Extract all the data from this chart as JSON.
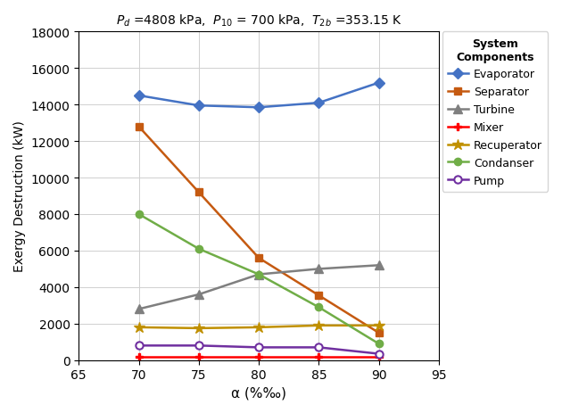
{
  "title": "$P_d$ =4808 kPa,  $P_{10}$ = 700 kPa,  $T_{2b}$ =353.15 K",
  "xlabel": "α (%‰)",
  "ylabel": "Exergy Destruction (kW)",
  "legend_title": "System\nComponents",
  "xlim": [
    65,
    95
  ],
  "ylim": [
    0,
    18000
  ],
  "xticks": [
    65,
    70,
    75,
    80,
    85,
    90,
    95
  ],
  "yticks": [
    0,
    2000,
    4000,
    6000,
    8000,
    10000,
    12000,
    14000,
    16000,
    18000
  ],
  "alpha_values": [
    70,
    75,
    80,
    85,
    90
  ],
  "series": [
    {
      "name": "Evaporator",
      "color": "#4472C4",
      "marker": "D",
      "markersize": 6,
      "linewidth": 1.8,
      "open": false,
      "values": [
        14500,
        13950,
        13850,
        14100,
        15200
      ]
    },
    {
      "name": "Separator",
      "color": "#C55A11",
      "marker": "s",
      "markersize": 6,
      "linewidth": 1.8,
      "open": false,
      "values": [
        12800,
        9200,
        5600,
        3550,
        1500
      ]
    },
    {
      "name": "Turbine",
      "color": "#7F7F7F",
      "marker": "^",
      "markersize": 7,
      "linewidth": 1.8,
      "open": false,
      "values": [
        2800,
        3600,
        4700,
        5000,
        5200
      ]
    },
    {
      "name": "Mixer",
      "color": "#FF0000",
      "marker": "P",
      "markersize": 6,
      "linewidth": 1.8,
      "open": false,
      "values": [
        180,
        180,
        180,
        180,
        180
      ]
    },
    {
      "name": "Recuperator",
      "color": "#C09000",
      "marker": "*",
      "markersize": 9,
      "linewidth": 1.8,
      "open": false,
      "values": [
        1800,
        1750,
        1800,
        1900,
        1900
      ]
    },
    {
      "name": "Condanser",
      "color": "#70AD47",
      "marker": "o",
      "markersize": 6,
      "linewidth": 1.8,
      "open": false,
      "values": [
        8000,
        6100,
        4700,
        2900,
        900
      ]
    },
    {
      "name": "Pump",
      "color": "#7030A0",
      "marker": "o",
      "markersize": 6,
      "linewidth": 1.8,
      "open": true,
      "values": [
        800,
        800,
        700,
        700,
        350
      ]
    }
  ]
}
